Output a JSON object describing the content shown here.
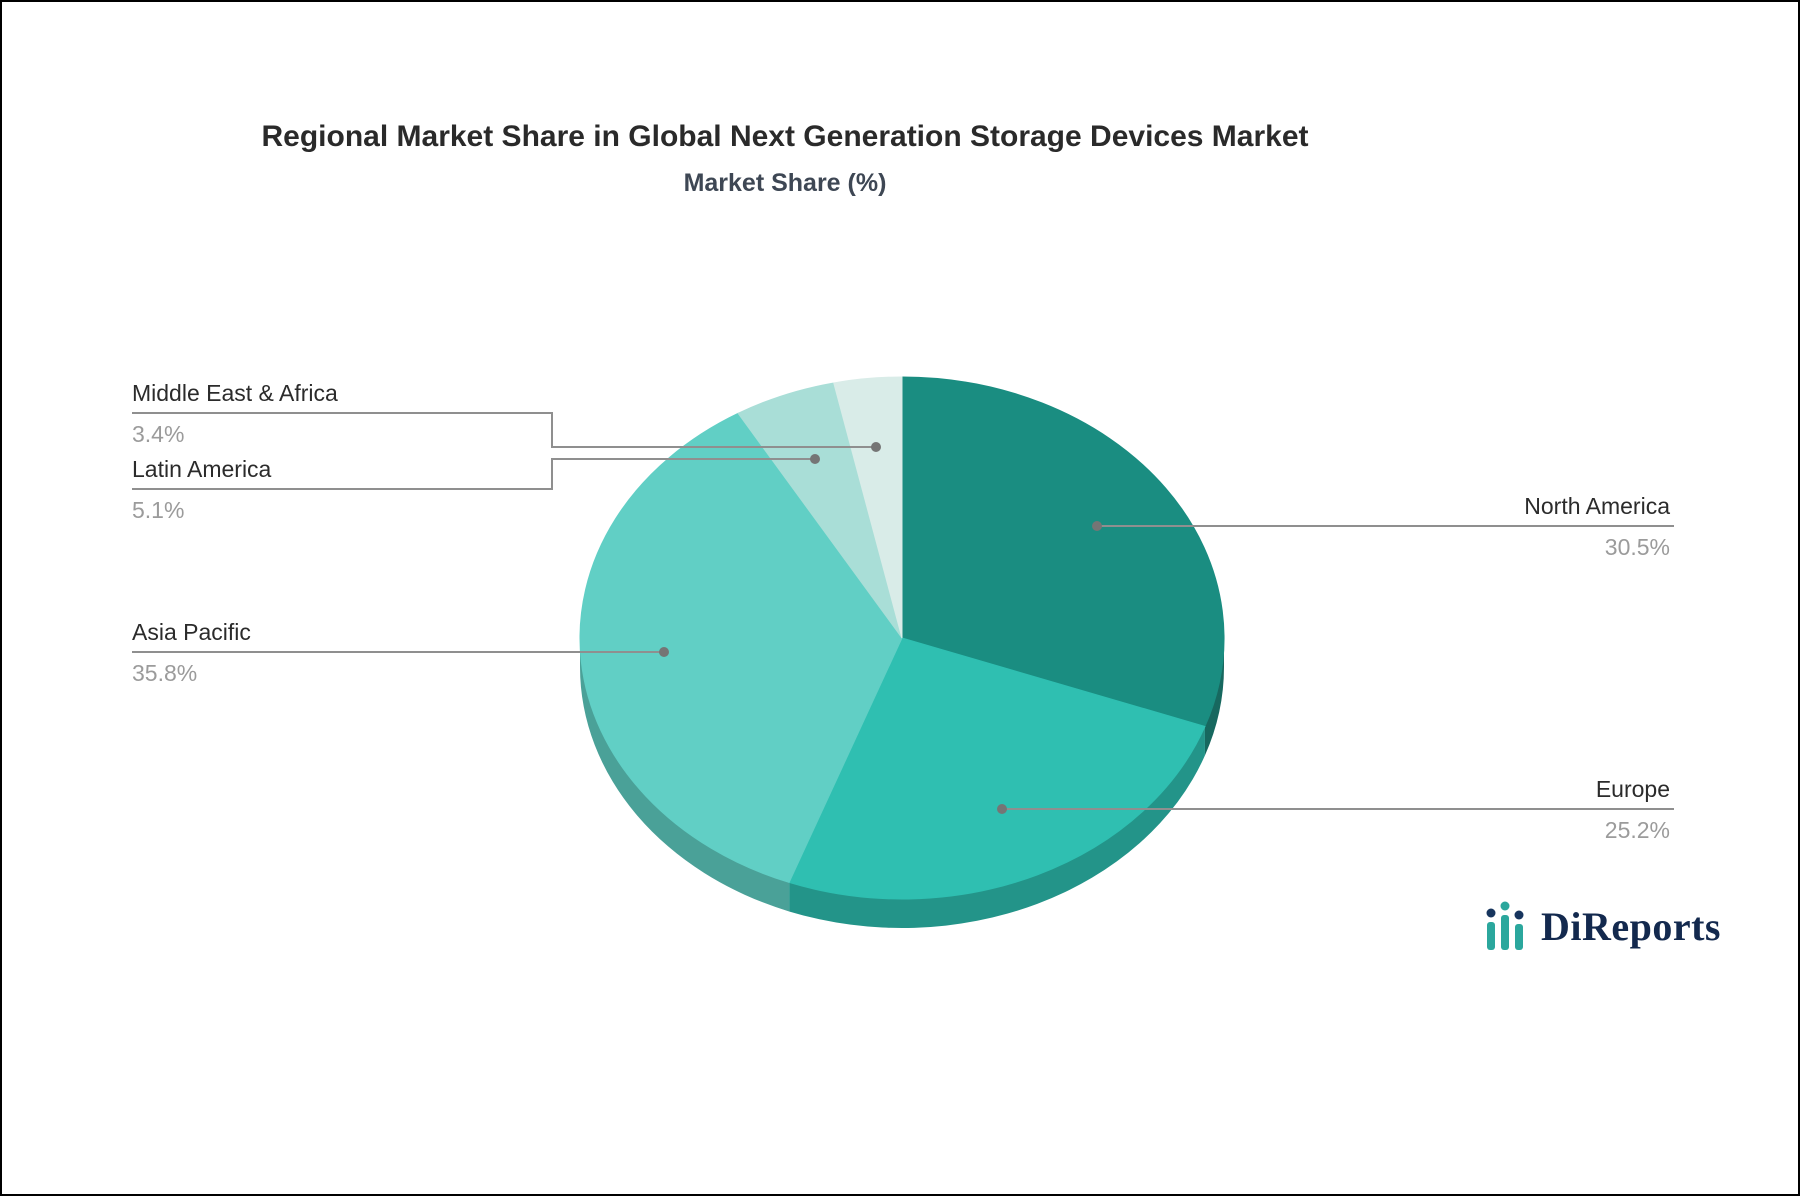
{
  "title": "Regional Market Share in Global Next Generation Storage Devices Market",
  "subtitle": "Market Share (%)",
  "chart_data": {
    "type": "pie",
    "title": "Regional Market Share in Global Next Generation Storage Devices Market",
    "subtitle": "Market Share (%)",
    "unit": "percent",
    "style": "3d-pie-with-callouts",
    "start_angle_deg": 0,
    "direction": "clockwise",
    "segments": [
      {
        "label": "North America",
        "value": 30.5,
        "display": "30.5%",
        "color": "#1a8d81",
        "rim_color": "#17685f",
        "callout_side": "right"
      },
      {
        "label": "Europe",
        "value": 25.2,
        "display": "25.2%",
        "color": "#2fbfb1",
        "rim_color": "#239489",
        "callout_side": "right"
      },
      {
        "label": "Asia Pacific",
        "value": 35.8,
        "display": "35.8%",
        "color": "#61cfc5",
        "rim_color": "#4aa198",
        "callout_side": "left"
      },
      {
        "label": "Latin America",
        "value": 5.1,
        "display": "5.1%",
        "color": "#a9ded7",
        "rim_color": "#8cc6be",
        "callout_side": "left"
      },
      {
        "label": "Middle East & Africa",
        "value": 3.4,
        "display": "3.4%",
        "color": "#d9ece8",
        "rim_color": "#b9d8d2",
        "callout_side": "left"
      }
    ],
    "leader_line_color": "#8f8f8f",
    "leader_dot_color": "#757575"
  },
  "logo": {
    "text": "DiReports"
  }
}
